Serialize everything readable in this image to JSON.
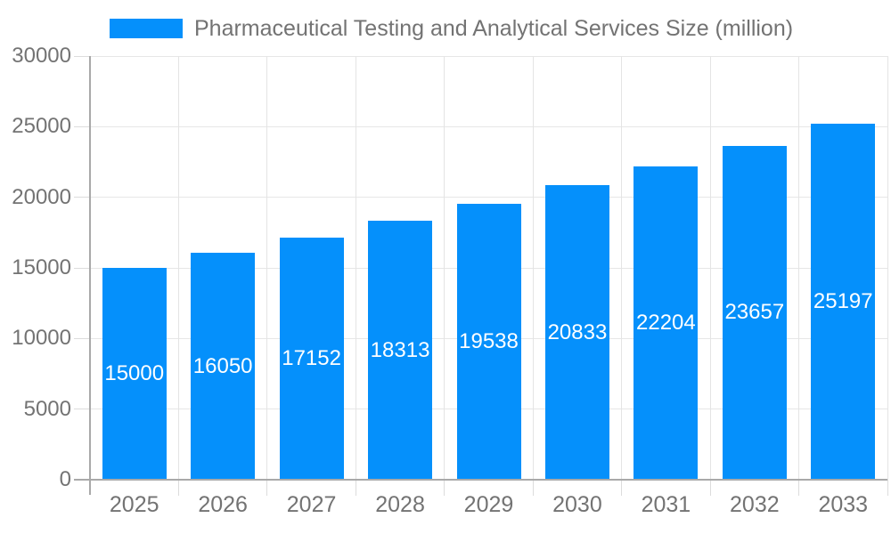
{
  "legend": {
    "label": "Pharmaceutical Testing and Analytical Services Size (million)"
  },
  "chart_data": {
    "type": "bar",
    "title": "Pharmaceutical Testing and Analytical Services Size (million)",
    "categories": [
      "2025",
      "2026",
      "2027",
      "2028",
      "2029",
      "2030",
      "2031",
      "2032",
      "2033"
    ],
    "values": [
      15000,
      16050,
      17152,
      18313,
      19538,
      20833,
      22204,
      23657,
      25197
    ],
    "bar_labels": [
      "15000",
      "16050",
      "17152",
      "18313",
      "19538",
      "20833",
      "22204",
      "23657",
      "25197"
    ],
    "xlabel": "",
    "ylabel": "",
    "ylim": [
      0,
      30000
    ],
    "y_ticks": [
      0,
      5000,
      10000,
      15000,
      20000,
      25000,
      30000
    ],
    "y_tick_labels": [
      "0",
      "5000",
      "10000",
      "15000",
      "20000",
      "25000",
      "30000"
    ],
    "grid": "on",
    "legend_position": "top-left",
    "colors": {
      "bar": "#0590fb",
      "bar_label_text": "#ffffff",
      "axis_text": "#737373",
      "grid_line": "#e6e6e6",
      "axis_line": "#a9a9a9",
      "legend_text": "#737373"
    }
  }
}
